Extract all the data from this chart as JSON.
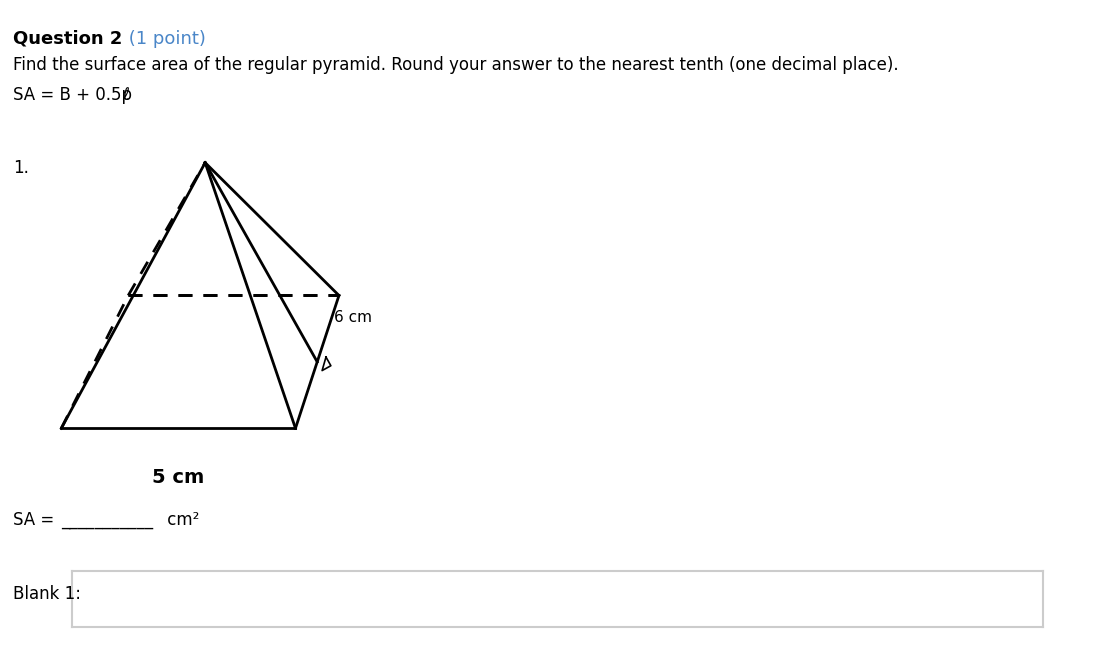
{
  "title_bold": "Question 2",
  "title_normal": " (1 point)",
  "subtitle": "Find the surface area of the regular pyramid. Round your answer to the nearest tenth (one decimal place).",
  "formula": "SA = B + 0.5pℓ",
  "item_number": "1.",
  "dim_base": "5 cm",
  "dim_slant": "6 cm",
  "sa_label": "SA = ",
  "sa_unit": "cm²",
  "blank_label": "Blank 1:",
  "bg_color": "#ffffff",
  "title_color": "#000000",
  "subtitle_color": "#000000",
  "formula_color": "#000000",
  "blue_color": "#4a86c8",
  "pyramid_color": "#000000"
}
